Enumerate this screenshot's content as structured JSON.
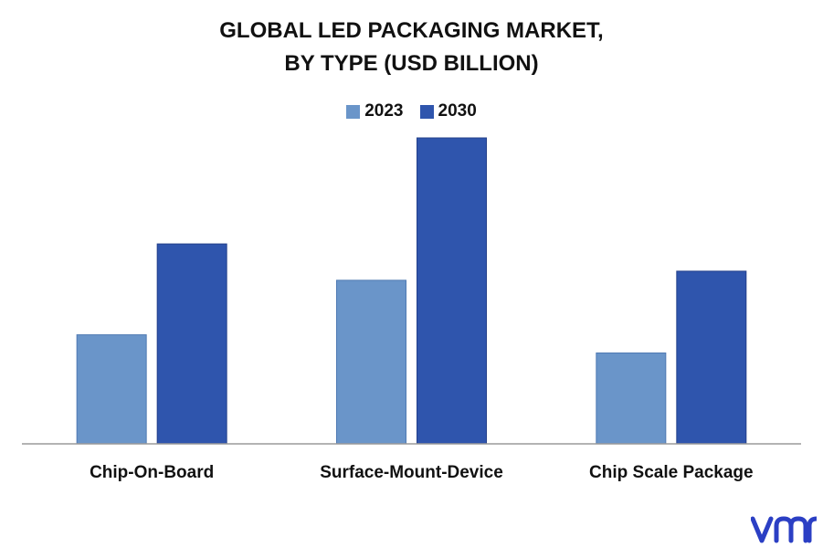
{
  "chart_data": {
    "type": "bar",
    "title_line1": "GLOBAL LED PACKAGING MARKET,",
    "title_line2": "BY TYPE (USD BILLION)",
    "categories": [
      "Chip-On-Board",
      "Surface-Mount-Device",
      "Chip Scale Package"
    ],
    "series": [
      {
        "name": "2023",
        "color": "#6a95c9",
        "values": [
          3.6,
          5.4,
          3.0
        ]
      },
      {
        "name": "2030",
        "color": "#2f55ad",
        "values": [
          6.6,
          10.1,
          5.7
        ]
      }
    ],
    "ylim": [
      0,
      11
    ]
  },
  "logo": {
    "text": "vmr",
    "color": "#2b3fc4"
  }
}
